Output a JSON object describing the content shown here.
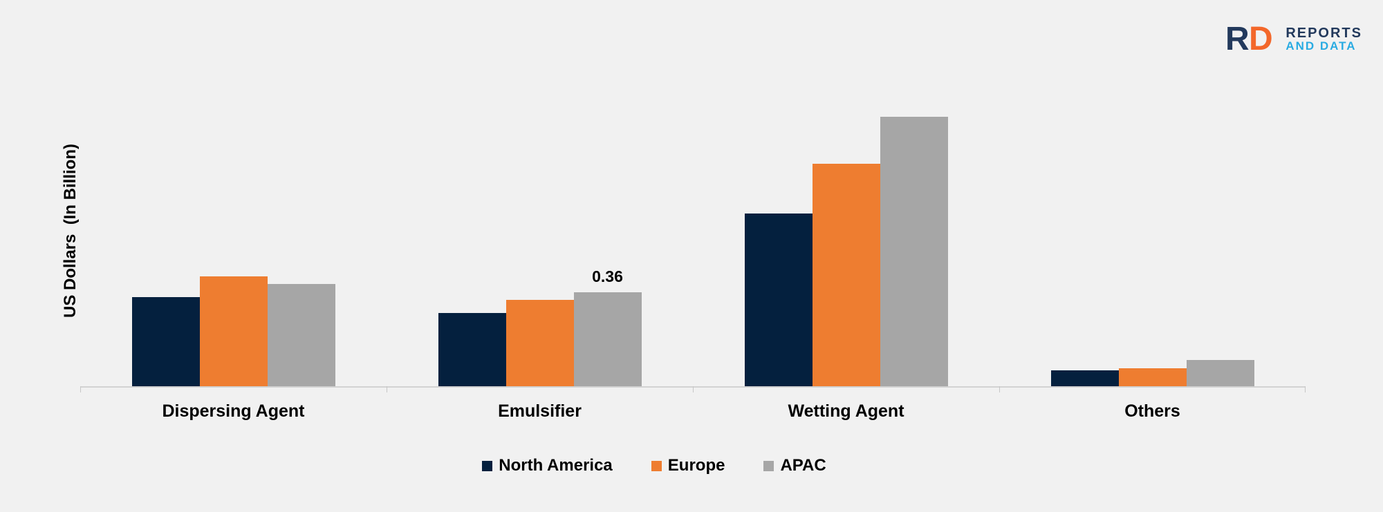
{
  "page": {
    "background": "#f1f1f1"
  },
  "logo": {
    "mark_r": "R",
    "mark_d": "D",
    "line1": "REPORTS",
    "line2": "AND DATA",
    "colors": {
      "navy": "#22395c",
      "orange": "#f3672a",
      "blue": "#29abe2"
    }
  },
  "chart_data": {
    "type": "bar",
    "title": "",
    "xlabel": "",
    "ylabel": "US Dollars  (In Billion)",
    "categories": [
      "Dispersing Agent",
      "Emulsifier",
      "Wetting Agent",
      "Others"
    ],
    "series": [
      {
        "name": "North America",
        "color": "#04203e",
        "values": [
          0.34,
          0.28,
          0.66,
          0.06
        ]
      },
      {
        "name": "Europe",
        "color": "#ee7d30",
        "values": [
          0.42,
          0.33,
          0.85,
          0.07
        ]
      },
      {
        "name": "APAC",
        "color": "#a6a6a6",
        "values": [
          0.39,
          0.36,
          1.03,
          0.1
        ]
      }
    ],
    "annotations": [
      {
        "category": "Emulsifier",
        "series": "APAC",
        "text": "0.36"
      }
    ],
    "ylim": [
      0,
      1.16
    ],
    "grid": false,
    "y_axis_ticks_visible": false,
    "legend_position": "bottom",
    "axis_line_color": "#d2d2d2"
  }
}
